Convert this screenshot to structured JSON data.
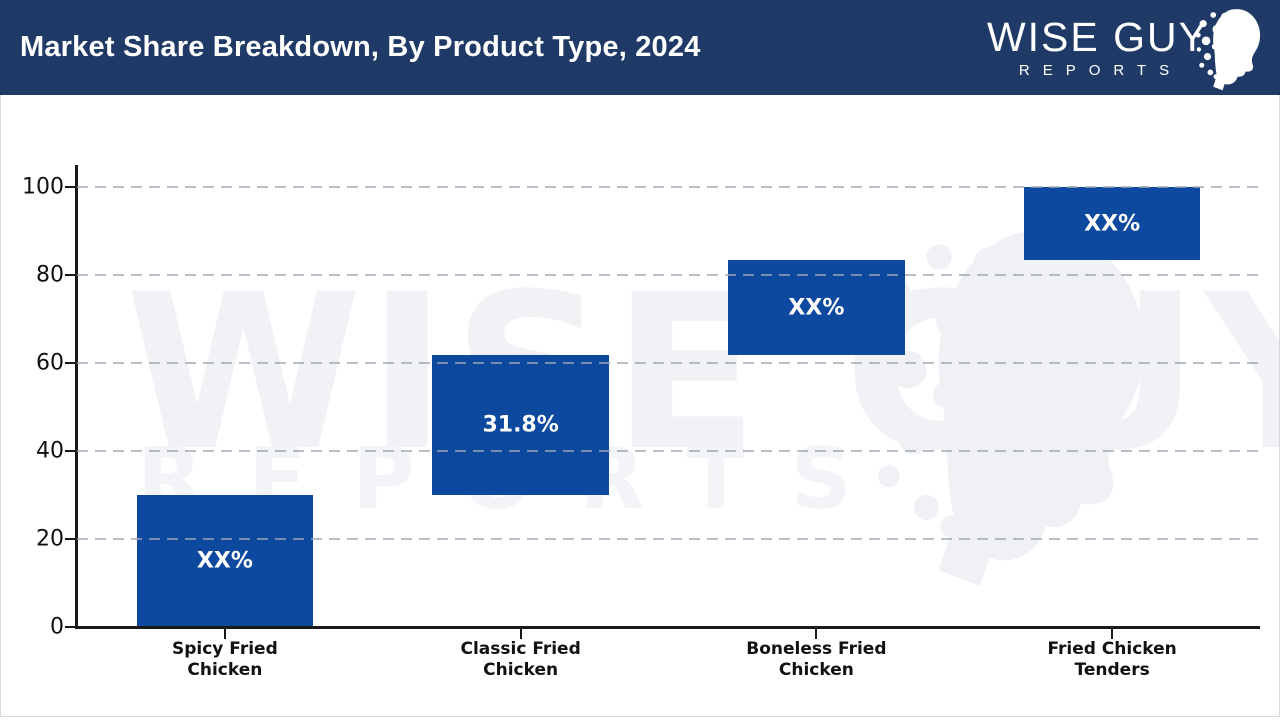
{
  "header": {
    "title": "Market Share Breakdown, By Product Type, 2024",
    "logo": {
      "line1": "WISE GUY",
      "line2": "REPORTS"
    }
  },
  "watermark": {
    "line1": "WISE GUY",
    "line2": "REPORTS"
  },
  "chart_data": {
    "type": "bar",
    "subtype": "waterfall-floating-segments",
    "title": "Market Share Breakdown, By Product Type, 2024",
    "xlabel": "",
    "ylabel": "",
    "categories": [
      [
        "Spicy Fried",
        "Chicken"
      ],
      [
        "Classic Fried",
        "Chicken"
      ],
      [
        "Boneless Fried",
        "Chicken"
      ],
      [
        "Fried Chicken",
        "Tenders"
      ]
    ],
    "bars": [
      {
        "start": 0,
        "end": 30,
        "segment_value": 30,
        "value_label": "XX%"
      },
      {
        "start": 30,
        "end": 61.8,
        "segment_value": 31.8,
        "value_label": "31.8%"
      },
      {
        "start": 61.8,
        "end": 83.4,
        "segment_value": 21.6,
        "value_label": "XX%"
      },
      {
        "start": 83.4,
        "end": 100,
        "segment_value": 16.6,
        "value_label": "XX%"
      }
    ],
    "yticks": [
      0,
      20,
      40,
      60,
      80,
      100
    ],
    "ylim": [
      0,
      105
    ],
    "grid": {
      "horizontal": true,
      "style": "dashed",
      "drawn_on_top_of_bars": true
    },
    "legend": null
  },
  "colors": {
    "header_bg": "#203a67",
    "title": "#ffffff",
    "bar": "#0d4a9f",
    "bar_label": "#ffffff",
    "axis": "#1a1a1a",
    "grid": "#c6cad2",
    "watermark": "#f1f2f5",
    "page_border": "#d8d8d8"
  }
}
